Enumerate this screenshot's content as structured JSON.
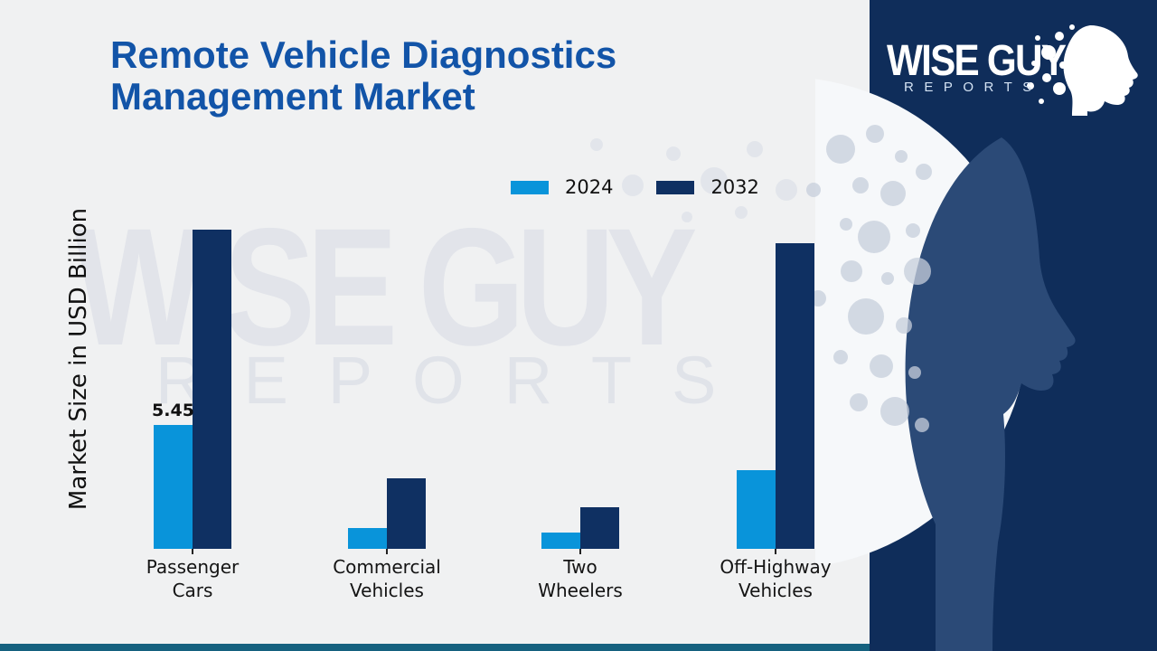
{
  "page": {
    "background_color": "#f0f1f2",
    "bottom_bar_color": "#15617f"
  },
  "header": {
    "title": "Remote Vehicle Diagnostics Management Market",
    "title_color": "#1254a8"
  },
  "brand": {
    "name": "WISE GUY",
    "sub": "REPORTS",
    "panel_color": "#0f2d5a"
  },
  "watermark": {
    "line1": "WISE GUY",
    "line2": "REPORTS"
  },
  "chart_data": {
    "type": "bar",
    "title": "Remote Vehicle Diagnostics Management Market",
    "xlabel": "",
    "ylabel": "Market Size in USD Billion",
    "categories": [
      "Passenger Cars",
      "Commercial Vehicles",
      "Two Wheelers",
      "Off-Highway Vehicles"
    ],
    "categories_lines": [
      [
        "Passenger",
        "Cars"
      ],
      [
        "Commercial",
        "Vehicles"
      ],
      [
        "Two",
        "Wheelers"
      ],
      [
        "Off-Highway",
        "Vehicles"
      ]
    ],
    "series": [
      {
        "name": "2024",
        "color": "#0994da",
        "values": [
          5.45,
          0.91,
          0.72,
          3.46
        ]
      },
      {
        "name": "2032",
        "color": "#0f3062",
        "values": [
          14.04,
          3.1,
          1.83,
          13.44
        ]
      }
    ],
    "data_labels": [
      {
        "series": "2024",
        "category": "Passenger Cars",
        "text": "5.45"
      }
    ],
    "legend_position": "top-center",
    "grid": false,
    "axis_lines": false,
    "ylim": [
      0,
      15
    ]
  }
}
